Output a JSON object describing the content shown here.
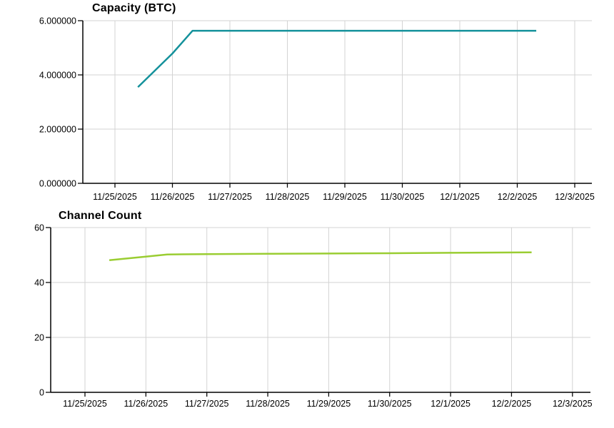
{
  "page": {
    "background": "#ffffff"
  },
  "colors": {
    "grid": "#d3d3d3",
    "axis": "#000000",
    "text": "#000000",
    "capacity_line": "#14919b",
    "channel_line": "#9acd32"
  },
  "chart_data": [
    {
      "type": "line",
      "title": "Capacity (BTC)",
      "xlabel": "",
      "ylabel": "",
      "grid": true,
      "legend": "none",
      "ylim": [
        0,
        6
      ],
      "x_unit": "days since 11/25/2025",
      "xlim": [
        -0.56,
        8.3
      ],
      "y_ticks": [
        {
          "value": 6,
          "label": "6.000000"
        },
        {
          "value": 4,
          "label": "4.000000"
        },
        {
          "value": 2,
          "label": "2.000000"
        },
        {
          "value": 0,
          "label": "0.000000"
        }
      ],
      "x_ticks": [
        {
          "day": 0,
          "label": "11/25/2025"
        },
        {
          "day": 1,
          "label": "11/26/2025"
        },
        {
          "day": 2,
          "label": "11/27/2025"
        },
        {
          "day": 3,
          "label": "11/28/2025"
        },
        {
          "day": 4,
          "label": "11/29/2025"
        },
        {
          "day": 5,
          "label": "11/30/2025"
        },
        {
          "day": 6,
          "label": "12/1/2025"
        },
        {
          "day": 7,
          "label": "12/2/2025"
        },
        {
          "day": 8,
          "label": "12/3/2025"
        }
      ],
      "series": [
        {
          "name": "Capacity (BTC)",
          "color": "#14919b",
          "points": [
            [
              0.4,
              3.55
            ],
            [
              1.0,
              4.79
            ],
            [
              1.35,
              5.63
            ],
            [
              7.33,
              5.63
            ]
          ]
        }
      ]
    },
    {
      "type": "line",
      "title": "Channel Count",
      "xlabel": "",
      "ylabel": "",
      "grid": true,
      "legend": "none",
      "ylim": [
        0,
        60
      ],
      "x_unit": "days since 11/25/2025",
      "xlim": [
        -0.56,
        8.3
      ],
      "y_ticks": [
        {
          "value": 60,
          "label": "60"
        },
        {
          "value": 40,
          "label": "40"
        },
        {
          "value": 20,
          "label": "20"
        },
        {
          "value": 0,
          "label": "0"
        }
      ],
      "x_ticks": [
        {
          "day": 0,
          "label": "11/25/2025"
        },
        {
          "day": 1,
          "label": "11/26/2025"
        },
        {
          "day": 2,
          "label": "11/27/2025"
        },
        {
          "day": 3,
          "label": "11/28/2025"
        },
        {
          "day": 4,
          "label": "11/29/2025"
        },
        {
          "day": 5,
          "label": "11/30/2025"
        },
        {
          "day": 6,
          "label": "12/1/2025"
        },
        {
          "day": 7,
          "label": "12/2/2025"
        },
        {
          "day": 8,
          "label": "12/3/2025"
        }
      ],
      "series": [
        {
          "name": "Channel Count",
          "color": "#9acd32",
          "points": [
            [
              0.4,
              48.1
            ],
            [
              1.0,
              49.4
            ],
            [
              1.35,
              50.2
            ],
            [
              2.0,
              50.3
            ],
            [
              3.0,
              50.45
            ],
            [
              4.0,
              50.55
            ],
            [
              5.0,
              50.65
            ],
            [
              6.0,
              50.8
            ],
            [
              7.33,
              51.0
            ]
          ]
        }
      ]
    }
  ]
}
